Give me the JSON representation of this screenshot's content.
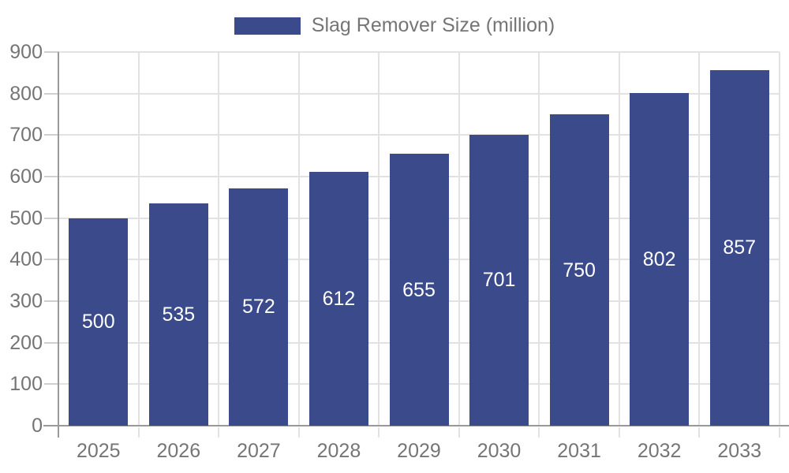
{
  "chart_data": {
    "type": "bar",
    "legend": "Slag Remover Size (million)",
    "categories": [
      "2025",
      "2026",
      "2027",
      "2028",
      "2029",
      "2030",
      "2031",
      "2032",
      "2033"
    ],
    "values": [
      500,
      535,
      572,
      612,
      655,
      701,
      750,
      802,
      857
    ],
    "title": "",
    "xlabel": "",
    "ylabel": "",
    "ylim": [
      0,
      900
    ],
    "ytick_step": 100,
    "yticks": [
      "0",
      "100",
      "200",
      "300",
      "400",
      "500",
      "600",
      "700",
      "800",
      "900"
    ],
    "grid": true,
    "legend_position": "top",
    "value_labels": "inside-center"
  },
  "colors": {
    "bar": "#3a4a8b",
    "value_label": "#ffffff",
    "tick_label": "#757575",
    "legend_text": "#757575",
    "gridline": "#e2e2e2",
    "axis_line": "#999999",
    "tick_mark": "#cfcfcf",
    "background": "#ffffff"
  }
}
